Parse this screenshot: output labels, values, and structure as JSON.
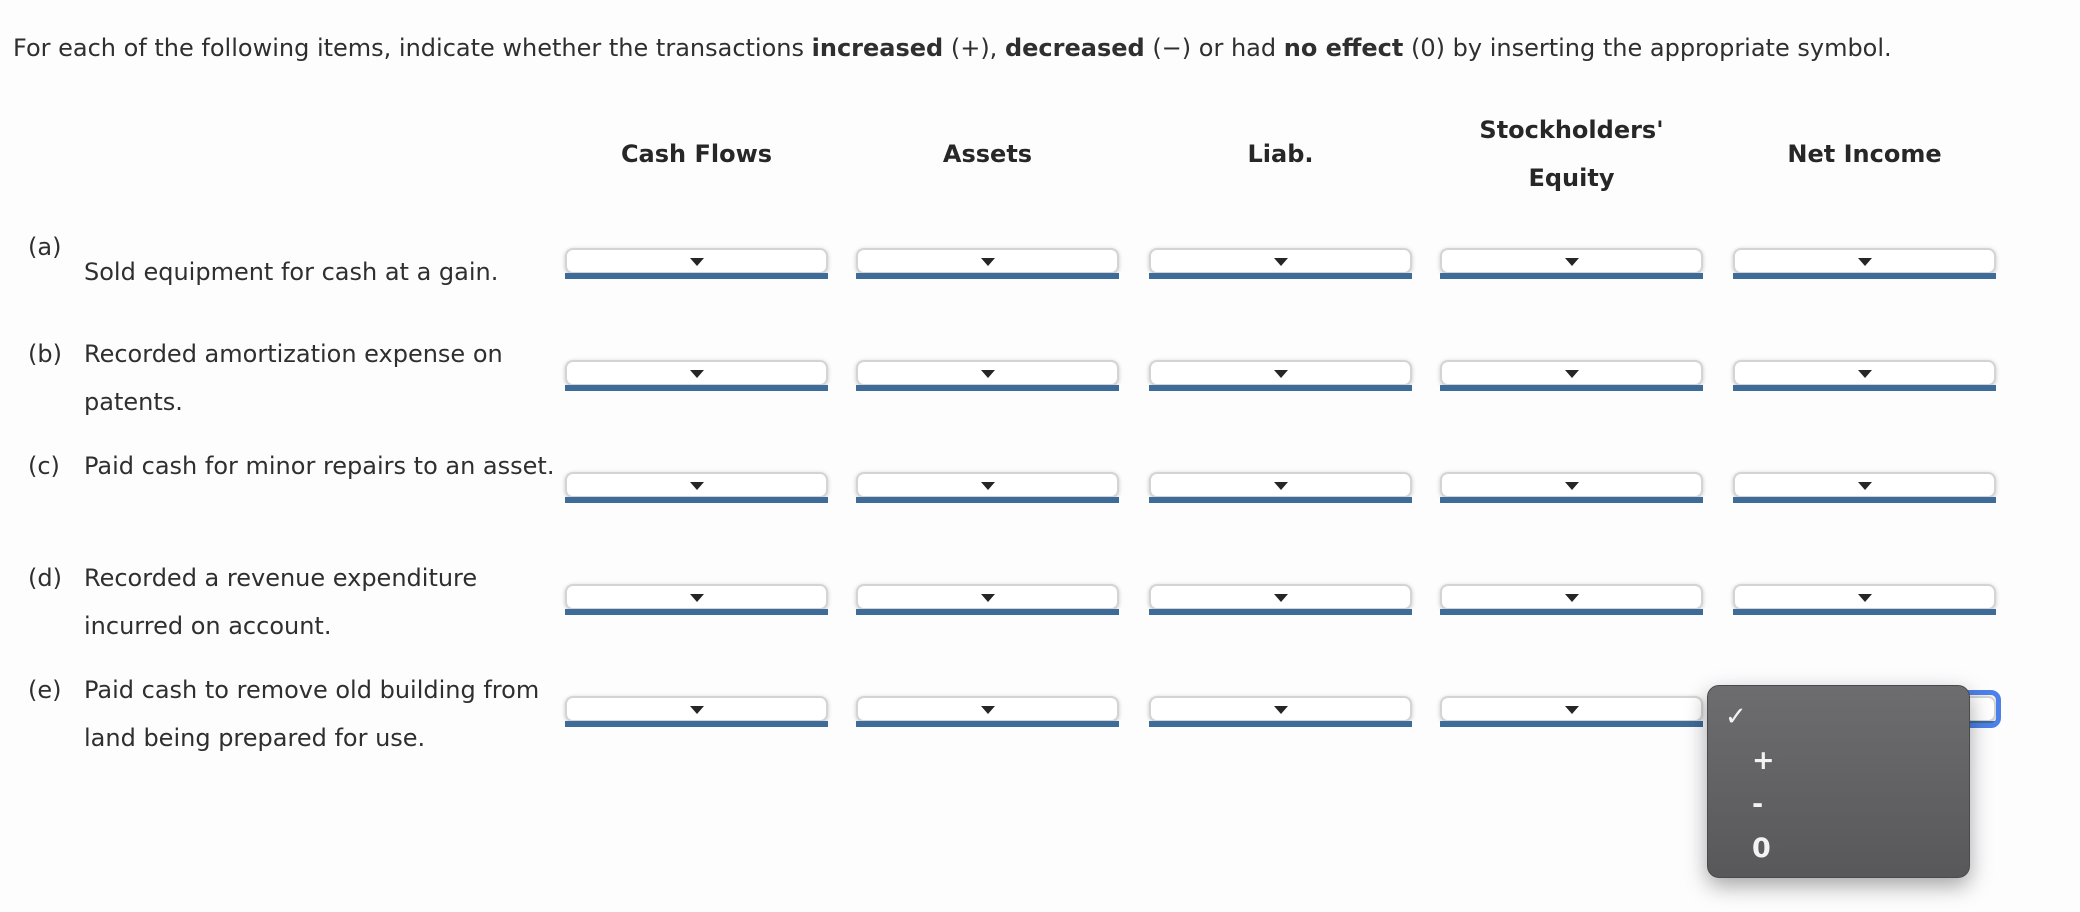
{
  "instruction": {
    "segments": [
      {
        "text": "For each of the following items, indicate whether the transactions ",
        "bold": false
      },
      {
        "text": "increased",
        "bold": true
      },
      {
        "text": " (+), ",
        "bold": false
      },
      {
        "text": "decreased",
        "bold": true
      },
      {
        "text": " (−) or had ",
        "bold": false
      },
      {
        "text": "no effect",
        "bold": true
      },
      {
        "text": " (0) by inserting the appropriate symbol.",
        "bold": false
      }
    ]
  },
  "columns": [
    {
      "key": "cash-flows",
      "lines": [
        "Cash Flows"
      ]
    },
    {
      "key": "assets",
      "lines": [
        "Assets"
      ]
    },
    {
      "key": "liabilities",
      "lines": [
        "Liab."
      ]
    },
    {
      "key": "stockholders-equity",
      "lines": [
        "Stockholders'",
        "Equity"
      ]
    },
    {
      "key": "net-income",
      "lines": [
        "Net Income"
      ]
    }
  ],
  "rows": [
    {
      "id": "(a)",
      "text": "Sold equipment for cash at a gain."
    },
    {
      "id": "(b)",
      "text": "Recorded amortization expense on patents."
    },
    {
      "id": "(c)",
      "text": "Paid cash for minor repairs to an asset."
    },
    {
      "id": "(d)",
      "text": "Recorded a revenue expenditure incurred on account."
    },
    {
      "id": "(e)",
      "text": "Paid cash to remove old building from land being prepared for use."
    }
  ],
  "select": {
    "value": "",
    "arrow_icon": "triangle-down"
  },
  "focused_select": {
    "row": "(e)",
    "column": "Net Income"
  },
  "dropdown_menu": {
    "open": true,
    "check_glyph": "✓",
    "items": [
      {
        "label": "",
        "selected": true
      },
      {
        "label": "+",
        "selected": false
      },
      {
        "label": "-",
        "selected": false
      },
      {
        "label": "0",
        "selected": false
      }
    ]
  },
  "artifacts": {
    "clipped_glyph": ")"
  },
  "colors": {
    "text": "#2f2f2f",
    "select_underline": "#3e6b98",
    "focus_ring": "#4d80e8",
    "menu_bg_top": "#6d6d6f",
    "menu_bg_bottom": "#58585a",
    "menu_text": "#f3f3f3"
  }
}
